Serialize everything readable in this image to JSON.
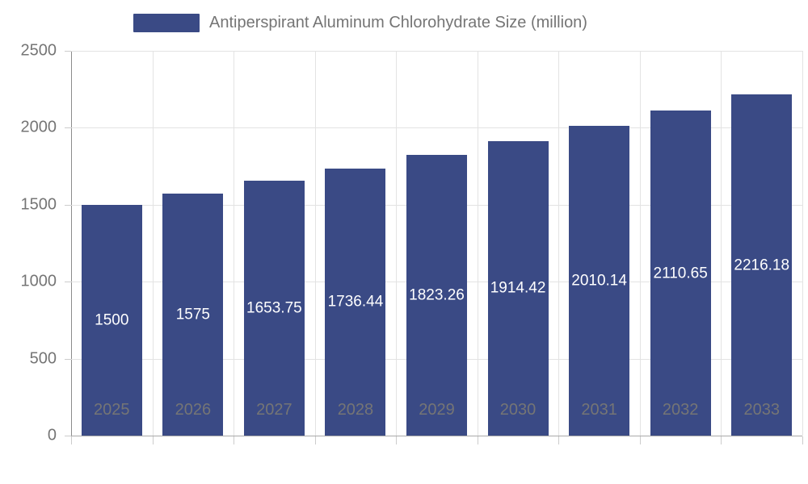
{
  "legend": {
    "label": "Antiperspirant Aluminum Chlorohydrate Size (million)"
  },
  "chart_data": {
    "type": "bar",
    "title": "Antiperspirant Aluminum Chlorohydrate Size (million)",
    "categories": [
      "2025",
      "2026",
      "2027",
      "2028",
      "2029",
      "2030",
      "2031",
      "2032",
      "2033"
    ],
    "values": [
      1500,
      1575,
      1653.75,
      1736.44,
      1823.26,
      1914.42,
      2010.14,
      2110.65,
      2216.18
    ],
    "bar_labels": [
      "1500",
      "1575",
      "1653.75",
      "1736.44",
      "1823.26",
      "1914.42",
      "2010.14",
      "2110.65",
      "2216.18"
    ],
    "xlabel": "",
    "ylabel": "",
    "ylim": [
      0,
      2500
    ],
    "yticks": [
      0,
      500,
      1000,
      1500,
      2000,
      2500
    ],
    "grid": true,
    "legend_position": "top",
    "colors": {
      "bar": "#3A4A85",
      "bar_label_text": "#FFFFFF",
      "axis_text": "#757575",
      "gridline": "#E3E3E3",
      "y_axis_line": "#8C8C8C",
      "x_axis_line": "#AAAAAA",
      "tick": "#CCCCCC"
    }
  }
}
